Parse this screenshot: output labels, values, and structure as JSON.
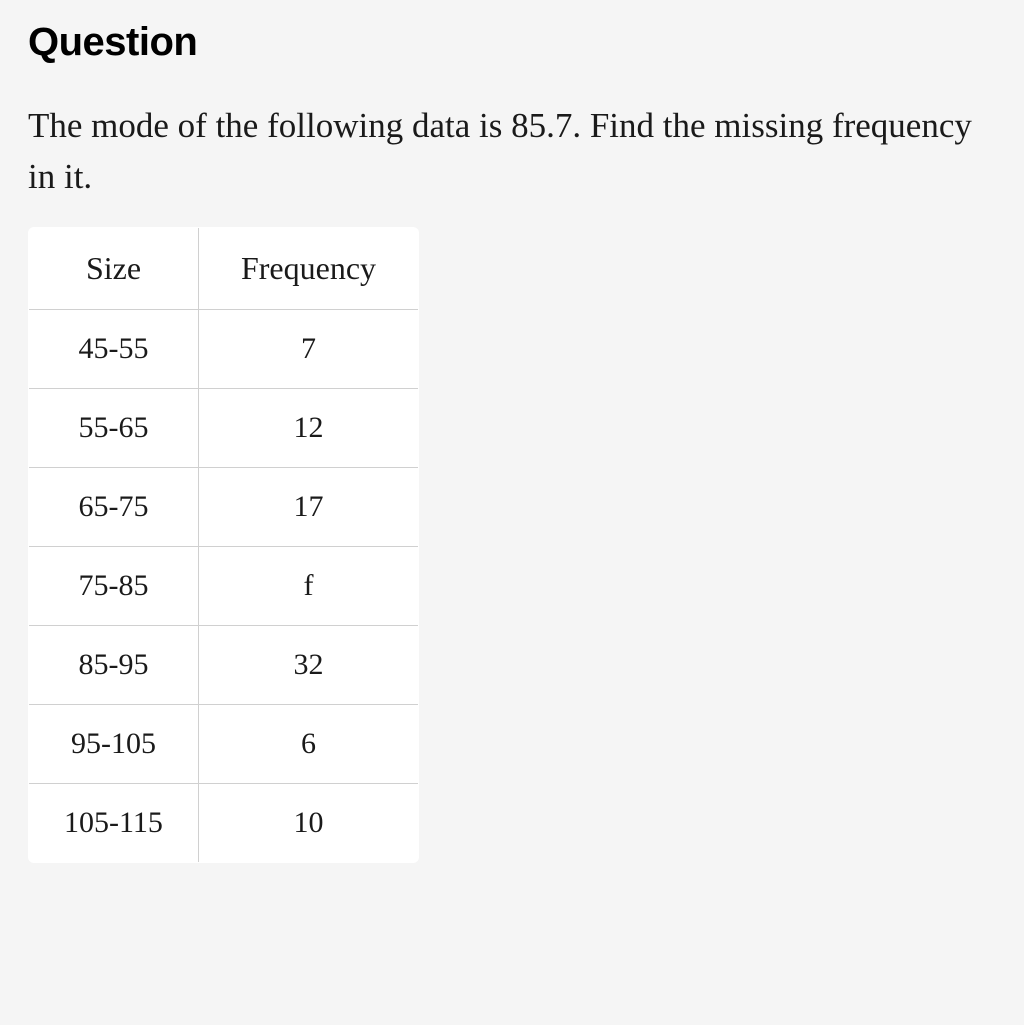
{
  "heading": "Question",
  "question_text": "The mode of the following data is 85.7. Find the missing frequency in it.",
  "table": {
    "columns": [
      "Size",
      "Frequency"
    ],
    "rows": [
      [
        "45-55",
        "7"
      ],
      [
        "55-65",
        "12"
      ],
      [
        "65-75",
        "17"
      ],
      [
        "75-85",
        "f"
      ],
      [
        "85-95",
        "32"
      ],
      [
        "95-105",
        "6"
      ],
      [
        "105-115",
        "10"
      ]
    ],
    "border_color": "#d0d0d0",
    "background_color": "#ffffff",
    "cell_fontsize": 30,
    "header_fontsize": 32,
    "text_color": "#1a1a1a"
  },
  "page_background": "#f5f5f5",
  "heading_fontsize": 40,
  "body_fontsize": 35
}
